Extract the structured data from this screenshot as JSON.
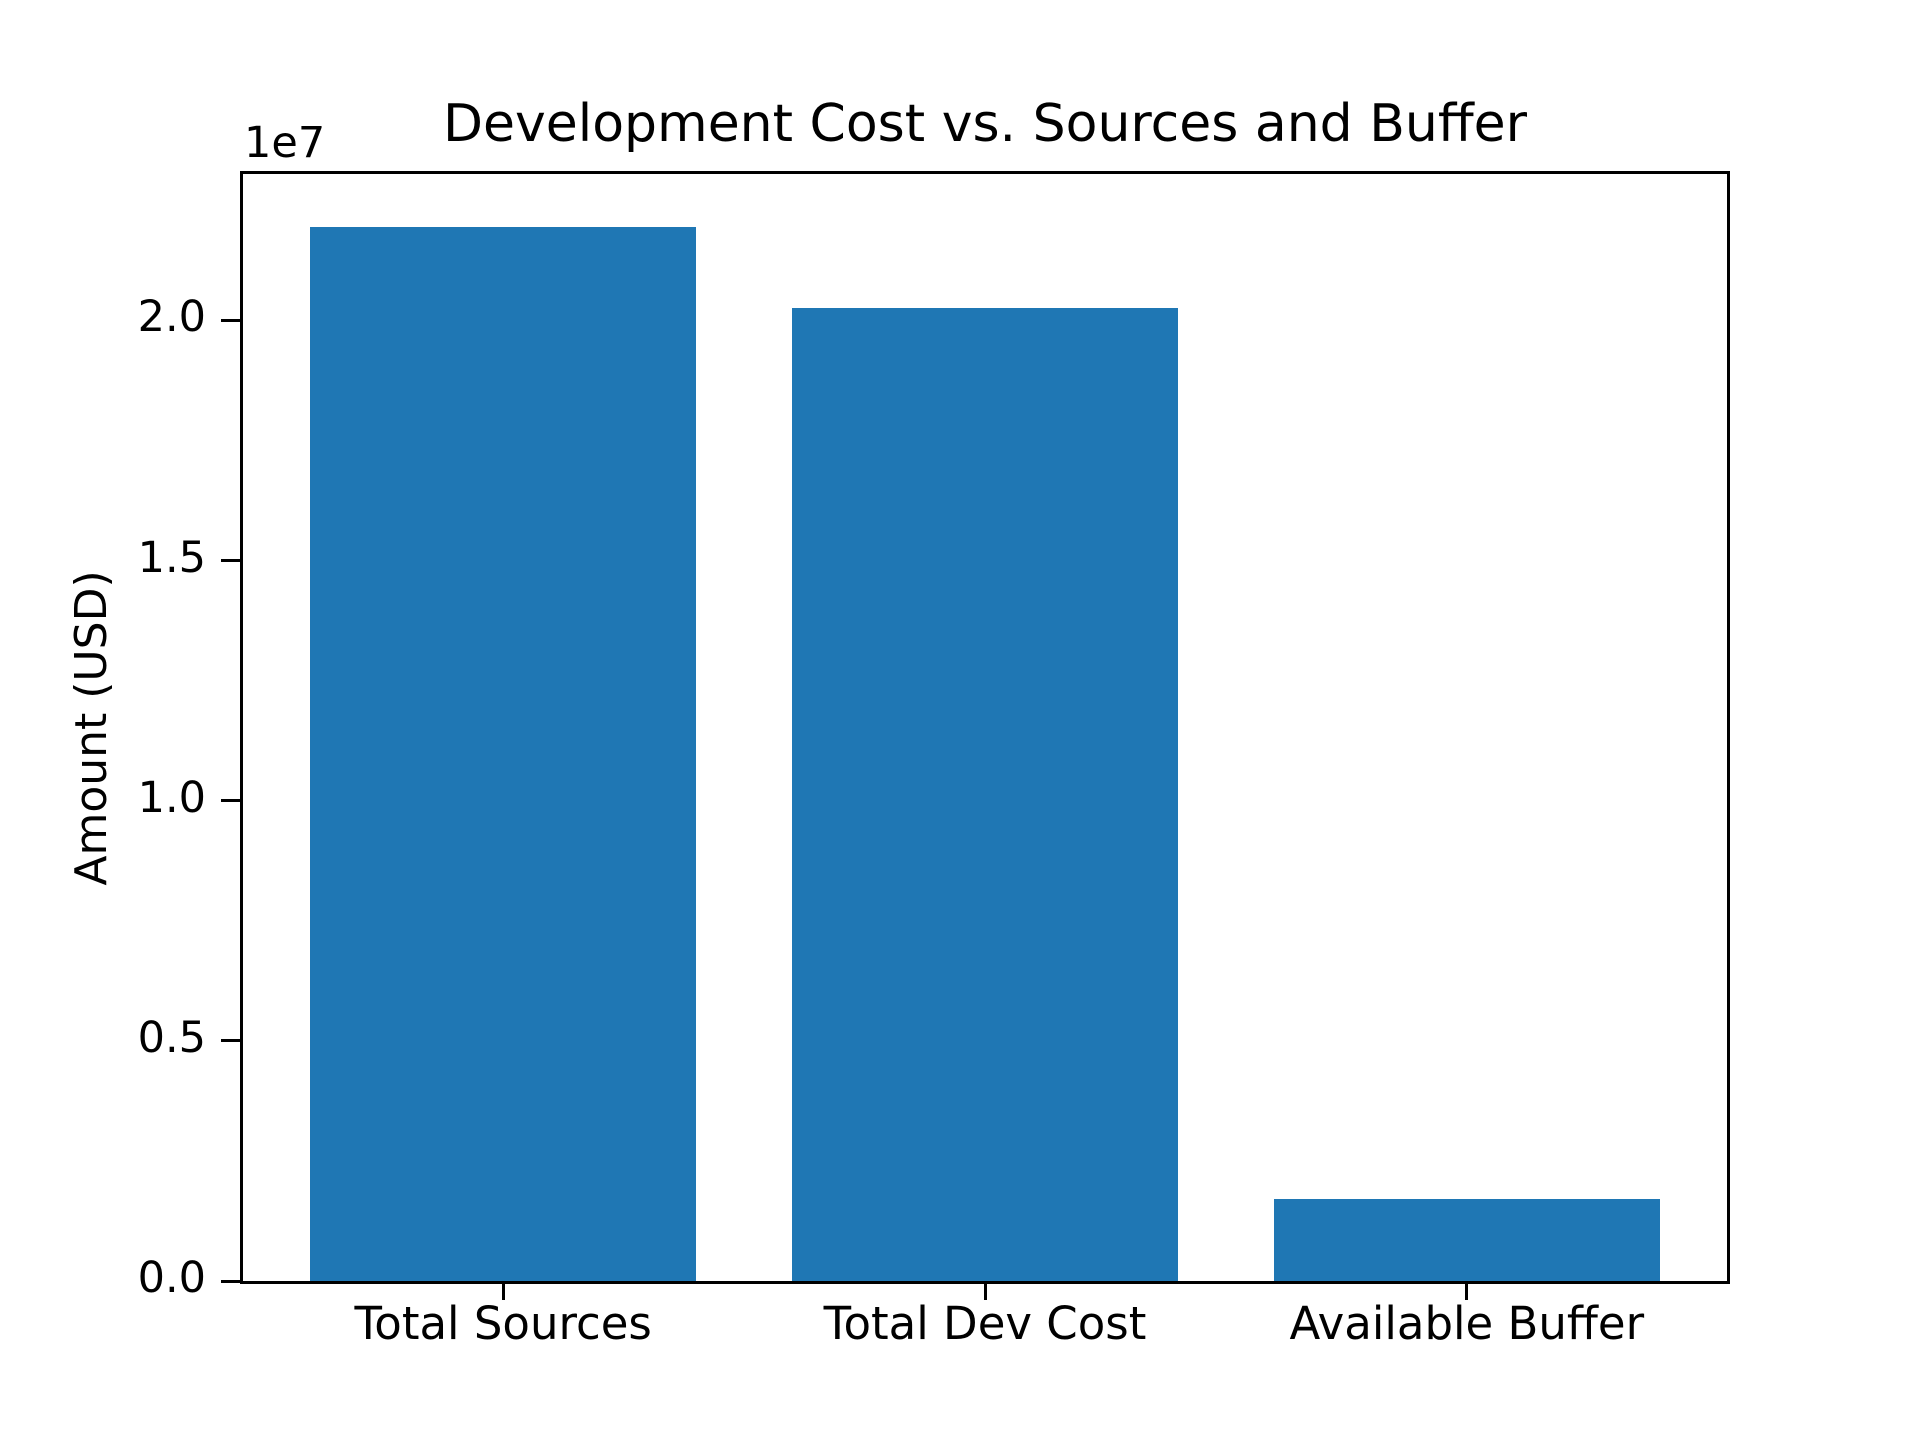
{
  "colors": {
    "background": "#ffffff",
    "text": "#000000",
    "spine": "#000000"
  },
  "chart_data": {
    "type": "bar",
    "title": "Development Cost vs. Sources and Buffer",
    "xlabel": "",
    "ylabel": "Amount (USD)",
    "y_offset_label": "1e7",
    "categories": [
      "Total Sources",
      "Total Dev Cost",
      "Available Buffer"
    ],
    "values": [
      21950000,
      20250000,
      1700000
    ],
    "bar_color": "#1f77b4",
    "ylim": [
      0,
      23047500
    ],
    "yticks": [
      {
        "label": "0.0",
        "value": 0
      },
      {
        "label": "0.5",
        "value": 5000000
      },
      {
        "label": "1.0",
        "value": 10000000
      },
      {
        "label": "1.5",
        "value": 15000000
      },
      {
        "label": "2.0",
        "value": 20000000
      }
    ],
    "grid": false,
    "legend": null
  }
}
